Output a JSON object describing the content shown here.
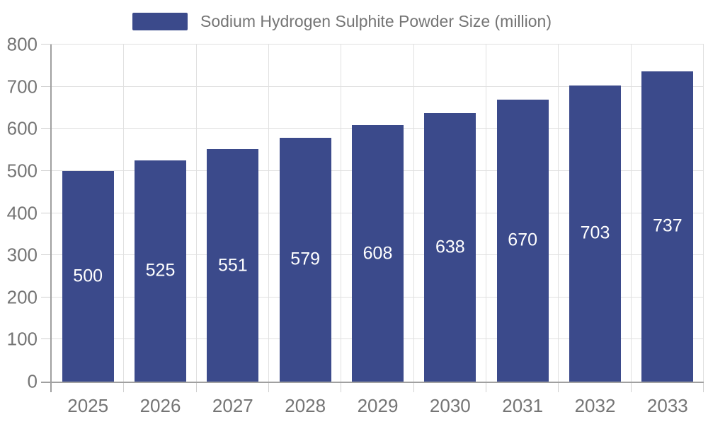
{
  "chart_data": {
    "type": "bar",
    "title": "Sodium Hydrogen Sulphite Powder Size (million)",
    "series_name": "Sodium Hydrogen Sulphite Powder Size (million)",
    "categories": [
      "2025",
      "2026",
      "2027",
      "2028",
      "2029",
      "2030",
      "2031",
      "2032",
      "2033"
    ],
    "values": [
      500,
      525,
      551,
      579,
      608,
      638,
      670,
      703,
      737
    ],
    "xlabel": "",
    "ylabel": "",
    "ylim": [
      0,
      800
    ],
    "yticks": [
      0,
      100,
      200,
      300,
      400,
      500,
      600,
      700,
      800
    ],
    "grid": "on",
    "legend_position": "top",
    "value_labels": "inside-center",
    "colors": {
      "bar": "#3B4A8B",
      "value_label": "#FFFFFF",
      "axis_text": "#757575",
      "grid_line": "#E0E0E0",
      "tick_line": "#D0D0D0",
      "axis_line": "#A0A0A0",
      "background": "#FFFFFF"
    }
  }
}
